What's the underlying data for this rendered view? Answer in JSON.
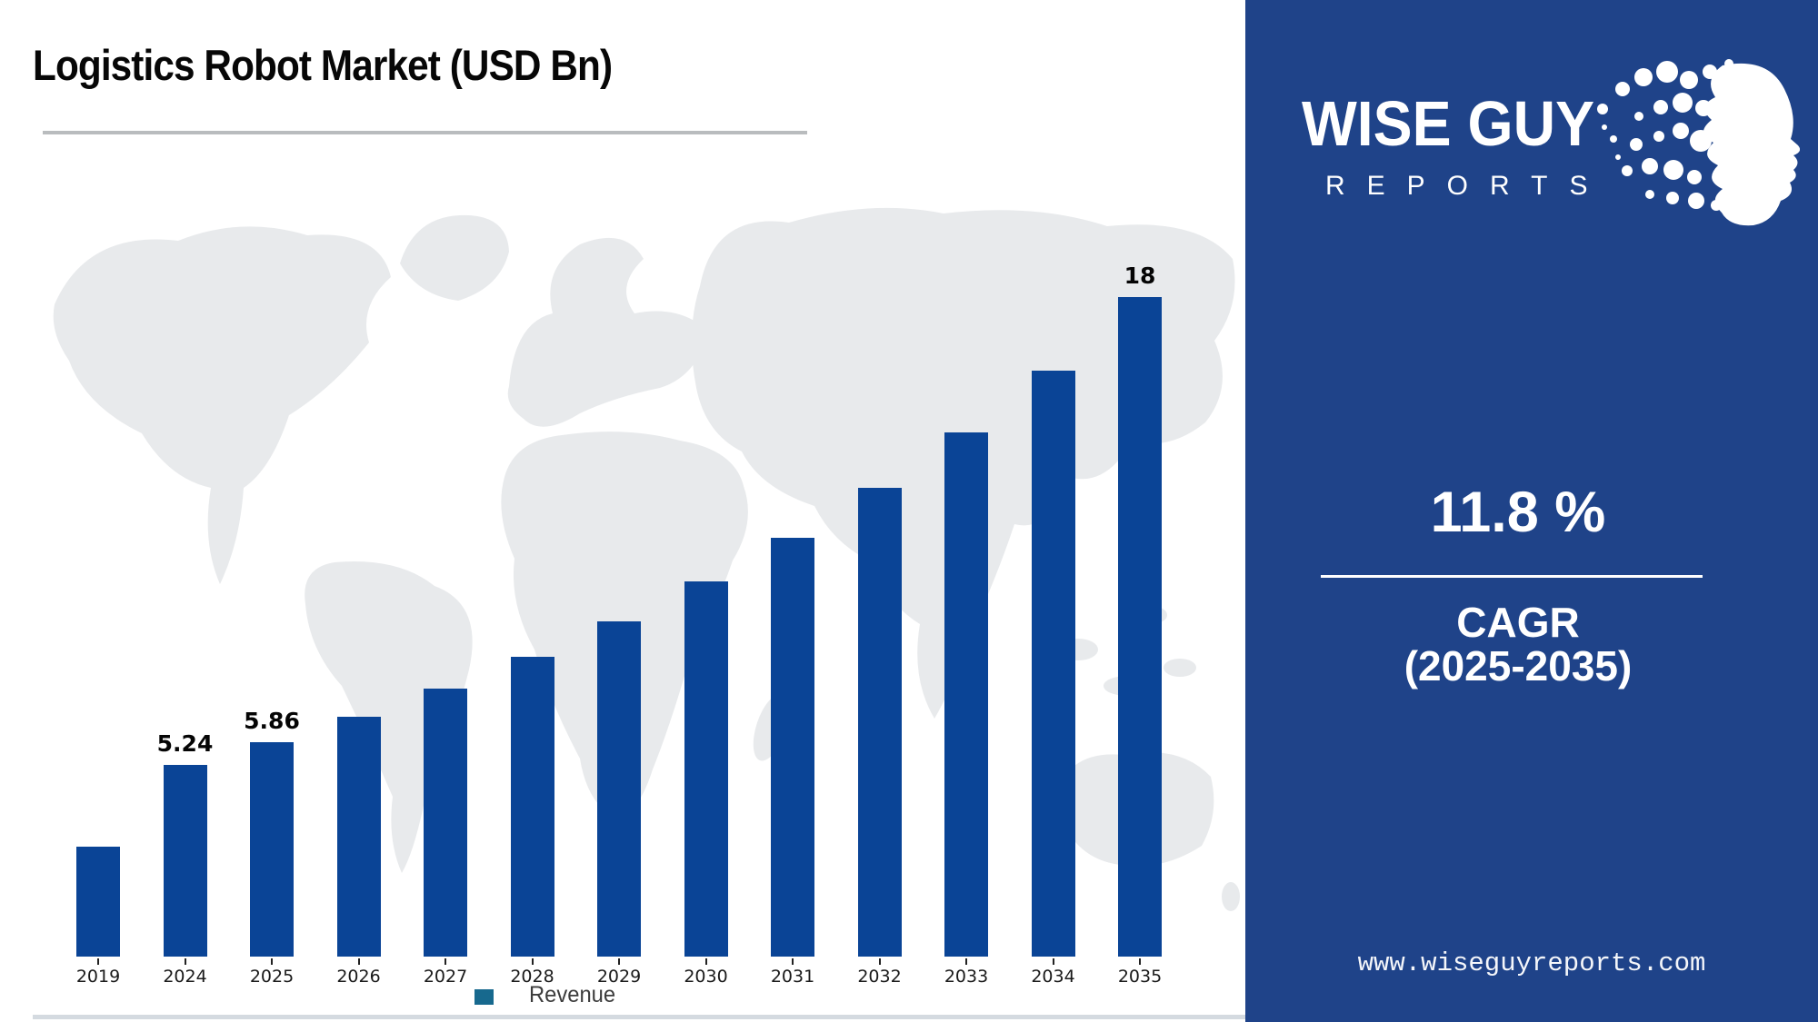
{
  "chart": {
    "title": "Logistics Robot Market (USD Bn)",
    "legend_label": "Revenue"
  },
  "chart_data": {
    "type": "bar",
    "title": "Logistics Robot Market (USD Bn)",
    "unit": "USD Bn",
    "categories": [
      "2019",
      "2024",
      "2025",
      "2026",
      "2027",
      "2028",
      "2029",
      "2030",
      "2031",
      "2032",
      "2033",
      "2034",
      "2035"
    ],
    "values": [
      3.0,
      5.24,
      5.86,
      6.55,
      7.32,
      8.19,
      9.15,
      10.23,
      11.44,
      12.79,
      14.3,
      15.99,
      18
    ],
    "bar_labels": [
      "",
      "5.24",
      "5.86",
      "",
      "",
      "",
      "",
      "",
      "",
      "",
      "",
      "",
      "18"
    ],
    "series_name": "Revenue",
    "ylim": [
      0,
      19.5
    ],
    "grid": false,
    "y_axis_visible": false,
    "legend_position": "bottom-center",
    "bar_color": "#0a4496",
    "legend_swatch_color": "#17698e",
    "map_background_color": "#e8eaec"
  },
  "sidebar": {
    "logo_line1": "WISE GUY",
    "logo_line2": "REPORTS",
    "cagr_value": "11.8 %",
    "cagr_label": "CAGR",
    "cagr_period": "(2025-2035)",
    "website": "www.wiseguyreports.com",
    "background_color": "#1f4389"
  }
}
